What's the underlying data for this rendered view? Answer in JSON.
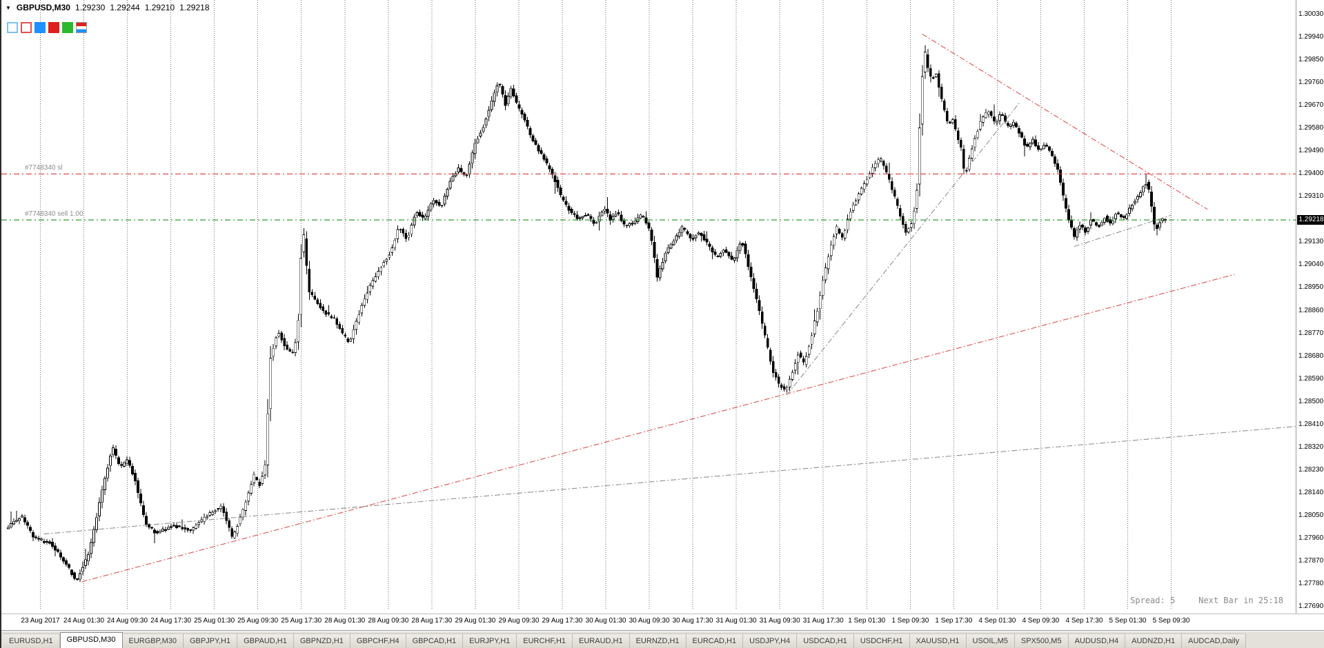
{
  "header": {
    "window_menu_icon": "▼",
    "symbol_title": "GBPUSD,M30",
    "ohlc": {
      "open": "1.29230",
      "high": "1.29244",
      "low": "1.29210",
      "close": "1.29218"
    }
  },
  "palette": {
    "swatches": [
      {
        "name": "outline-blue",
        "type": "outline",
        "color": "#7ec0ea"
      },
      {
        "name": "outline-red",
        "type": "outline",
        "color": "#e05050"
      },
      {
        "name": "solid-blue",
        "type": "solid",
        "color": "#1e90ff"
      },
      {
        "name": "solid-red",
        "type": "solid",
        "color": "#dd2020"
      },
      {
        "name": "solid-green",
        "type": "solid",
        "color": "#2eb82e"
      },
      {
        "name": "striped-flag",
        "type": "stripes",
        "colors": [
          "#dd2020",
          "#ffffff",
          "#1e90ff"
        ]
      }
    ]
  },
  "chart_data": {
    "type": "candlestick",
    "symbol": "GBPUSD",
    "timeframe": "M30",
    "title": "GBPUSD,M30",
    "current_price": "1.29218",
    "candle_count": 420,
    "ylim": [
      1.2769,
      1.3003
    ],
    "price_step": 0.0009,
    "grid": "vertical-dotted",
    "y_ticks": [
      "1.30030",
      "1.29940",
      "1.29850",
      "1.29760",
      "1.29670",
      "1.29580",
      "1.29490",
      "1.29400",
      "1.29310",
      "1.29220",
      "1.29130",
      "1.29040",
      "1.28950",
      "1.28860",
      "1.28770",
      "1.28680",
      "1.28590",
      "1.28500",
      "1.28410",
      "1.28320",
      "1.28230",
      "1.28140",
      "1.28050",
      "1.27960",
      "1.27870",
      "1.27780",
      "1.27690"
    ],
    "x_labels": [
      "23 Aug 2017",
      "24 Aug 01:30",
      "24 Aug 09:30",
      "24 Aug 17:30",
      "25 Aug 01:30",
      "25 Aug 09:30",
      "25 Aug 17:30",
      "28 Aug 01:30",
      "28 Aug 09:30",
      "28 Aug 17:30",
      "29 Aug 01:30",
      "29 Aug 09:30",
      "29 Aug 17:30",
      "30 Aug 01:30",
      "30 Aug 09:30",
      "30 Aug 17:30",
      "31 Aug 01:30",
      "31 Aug 09:30",
      "31 Aug 17:30",
      "1 Sep 01:30",
      "1 Sep 09:30",
      "1 Sep 17:30",
      "4 Sep 01:30",
      "4 Sep 09:30",
      "4 Sep 17:30",
      "5 Sep 01:30",
      "5 Sep 09:30"
    ],
    "levels": [
      {
        "id": "sl",
        "label": "#7748340 sl",
        "price": 1.294,
        "color": "#e03232",
        "style": "dash-dot"
      },
      {
        "id": "sell",
        "label": "#7748340 sell 1.00",
        "price": 1.29218,
        "color": "#179017",
        "style": "dash-dot"
      }
    ],
    "trendlines": [
      {
        "name": "rising-support-red",
        "x1": 0.0635,
        "p1": 1.27788,
        "x2": 1.0599,
        "p2": 1.29003,
        "color": "#e05050"
      },
      {
        "name": "falling-resistance-red",
        "x1": 0.7898,
        "p1": 1.29953,
        "x2": 1.0365,
        "p2": 1.2926,
        "color": "#e05050"
      },
      {
        "name": "long-rising-gray",
        "x1": 0.0307,
        "p1": 1.27977,
        "x2": 1.1146,
        "p2": 1.28403,
        "color": "#8f8f8f"
      },
      {
        "name": "steep-rising-gray",
        "x1": 0.673,
        "p1": 1.28527,
        "x2": 0.8737,
        "p2": 1.2968,
        "color": "#8f8f8f"
      },
      {
        "name": "short-rising-gray",
        "x1": 0.9212,
        "p1": 1.29113,
        "x2": 1.0051,
        "p2": 1.29237,
        "color": "#8f8f8f"
      }
    ],
    "price_path": [
      [
        0.0,
        1.28
      ],
      [
        0.0124,
        1.2805
      ],
      [
        0.0234,
        1.2796
      ],
      [
        0.038,
        1.2794
      ],
      [
        0.0511,
        1.2786
      ],
      [
        0.0599,
        1.2779
      ],
      [
        0.0708,
        1.279
      ],
      [
        0.0832,
        1.2817
      ],
      [
        0.0912,
        1.2832
      ],
      [
        0.0978,
        1.2824
      ],
      [
        0.1036,
        1.2827
      ],
      [
        0.1109,
        1.2819
      ],
      [
        0.1197,
        1.2802
      ],
      [
        0.1292,
        1.2798
      ],
      [
        0.1438,
        1.2801
      ],
      [
        0.1584,
        1.2799
      ],
      [
        0.173,
        1.2805
      ],
      [
        0.1854,
        1.2809
      ],
      [
        0.1949,
        1.2796
      ],
      [
        0.2058,
        1.2809
      ],
      [
        0.2131,
        1.2821
      ],
      [
        0.2182,
        1.2817
      ],
      [
        0.2233,
        1.2825
      ],
      [
        0.2277,
        1.2867
      ],
      [
        0.2343,
        1.2878
      ],
      [
        0.2401,
        1.2872
      ],
      [
        0.2467,
        1.2869
      ],
      [
        0.2511,
        1.2876
      ],
      [
        0.2555,
        1.2921
      ],
      [
        0.2606,
        1.2894
      ],
      [
        0.2679,
        1.2889
      ],
      [
        0.2752,
        1.2885
      ],
      [
        0.2825,
        1.2883
      ],
      [
        0.2898,
        1.2877
      ],
      [
        0.2956,
        1.2873
      ],
      [
        0.3044,
        1.2885
      ],
      [
        0.3131,
        1.2895
      ],
      [
        0.3226,
        1.2903
      ],
      [
        0.3314,
        1.2909
      ],
      [
        0.3387,
        1.2919
      ],
      [
        0.346,
        1.2914
      ],
      [
        0.3533,
        1.2925
      ],
      [
        0.3606,
        1.2922
      ],
      [
        0.3679,
        1.293
      ],
      [
        0.3752,
        1.2927
      ],
      [
        0.3825,
        1.2937
      ],
      [
        0.3898,
        1.2942
      ],
      [
        0.3971,
        1.2939
      ],
      [
        0.4044,
        1.2952
      ],
      [
        0.4117,
        1.2959
      ],
      [
        0.419,
        1.2969
      ],
      [
        0.4248,
        1.2977
      ],
      [
        0.4307,
        1.2967
      ],
      [
        0.4358,
        1.2974
      ],
      [
        0.4409,
        1.2967
      ],
      [
        0.4467,
        1.2962
      ],
      [
        0.4526,
        1.2955
      ],
      [
        0.4584,
        1.295
      ],
      [
        0.465,
        1.2945
      ],
      [
        0.4723,
        1.2939
      ],
      [
        0.4796,
        1.293
      ],
      [
        0.4869,
        1.2925
      ],
      [
        0.4942,
        1.2922
      ],
      [
        0.5015,
        1.2924
      ],
      [
        0.5088,
        1.292
      ],
      [
        0.5161,
        1.2927
      ],
      [
        0.5212,
        1.2922
      ],
      [
        0.527,
        1.2925
      ],
      [
        0.5343,
        1.2919
      ],
      [
        0.5416,
        1.2921
      ],
      [
        0.5489,
        1.2924
      ],
      [
        0.5562,
        1.2917
      ],
      [
        0.562,
        1.2899
      ],
      [
        0.5693,
        1.2909
      ],
      [
        0.5766,
        1.2914
      ],
      [
        0.5839,
        1.2919
      ],
      [
        0.5912,
        1.2914
      ],
      [
        0.5985,
        1.2917
      ],
      [
        0.6058,
        1.2912
      ],
      [
        0.6131,
        1.2907
      ],
      [
        0.6204,
        1.291
      ],
      [
        0.6277,
        1.2905
      ],
      [
        0.635,
        1.2914
      ],
      [
        0.6401,
        1.2905
      ],
      [
        0.646,
        1.2894
      ],
      [
        0.6511,
        1.2884
      ],
      [
        0.6569,
        1.2872
      ],
      [
        0.662,
        1.2862
      ],
      [
        0.6672,
        1.2857
      ],
      [
        0.673,
        1.2854
      ],
      [
        0.6788,
        1.2862
      ],
      [
        0.6839,
        1.2869
      ],
      [
        0.689,
        1.2865
      ],
      [
        0.6949,
        1.2875
      ],
      [
        0.7007,
        1.2887
      ],
      [
        0.7058,
        1.2899
      ],
      [
        0.7109,
        1.2909
      ],
      [
        0.7168,
        1.2919
      ],
      [
        0.7226,
        1.2914
      ],
      [
        0.7277,
        1.2924
      ],
      [
        0.7328,
        1.2929
      ],
      [
        0.7387,
        1.2934
      ],
      [
        0.7445,
        1.2939
      ],
      [
        0.7496,
        1.2944
      ],
      [
        0.7547,
        1.2946
      ],
      [
        0.7606,
        1.294
      ],
      [
        0.7664,
        1.2932
      ],
      [
        0.7715,
        1.2924
      ],
      [
        0.7766,
        1.2917
      ],
      [
        0.7825,
        1.2921
      ],
      [
        0.7861,
        1.2932
      ],
      [
        0.7898,
        1.2969
      ],
      [
        0.7927,
        1.299
      ],
      [
        0.7956,
        1.2982
      ],
      [
        0.7993,
        1.2977
      ],
      [
        0.8029,
        1.298
      ],
      [
        0.8066,
        1.2972
      ],
      [
        0.8102,
        1.2965
      ],
      [
        0.8139,
        1.2959
      ],
      [
        0.8175,
        1.2962
      ],
      [
        0.8212,
        1.2955
      ],
      [
        0.8248,
        1.295
      ],
      [
        0.8277,
        1.2939
      ],
      [
        0.8321,
        1.2947
      ],
      [
        0.8372,
        1.2955
      ],
      [
        0.8423,
        1.2962
      ],
      [
        0.8482,
        1.2965
      ],
      [
        0.854,
        1.296
      ],
      [
        0.8591,
        1.2964
      ],
      [
        0.8642,
        1.2959
      ],
      [
        0.8701,
        1.296
      ],
      [
        0.8759,
        1.2955
      ],
      [
        0.881,
        1.295
      ],
      [
        0.8861,
        1.2954
      ],
      [
        0.892,
        1.2949
      ],
      [
        0.8978,
        1.2952
      ],
      [
        0.9029,
        1.2947
      ],
      [
        0.908,
        1.2942
      ],
      [
        0.9124,
        1.2932
      ],
      [
        0.9175,
        1.2922
      ],
      [
        0.9226,
        1.2915
      ],
      [
        0.927,
        1.292
      ],
      [
        0.9321,
        1.2917
      ],
      [
        0.9372,
        1.2922
      ],
      [
        0.9431,
        1.2919
      ],
      [
        0.9489,
        1.2923
      ],
      [
        0.954,
        1.292
      ],
      [
        0.9591,
        1.2925
      ],
      [
        0.965,
        1.2922
      ],
      [
        0.9708,
        1.2927
      ],
      [
        0.9759,
        1.293
      ],
      [
        0.981,
        1.2934
      ],
      [
        0.9854,
        1.2937
      ],
      [
        0.9883,
        1.293
      ],
      [
        0.9927,
        1.2917
      ],
      [
        0.9971,
        1.29218
      ]
    ],
    "footer": {
      "spread": "Spread: 5",
      "next_bar": "Next Bar in 25:18"
    }
  },
  "tabs": {
    "active": "GBPUSD,M30",
    "items": [
      "EURUSD,H1",
      "GBPUSD,M30",
      "EURGBP,M30",
      "GBPJPY,H1",
      "GBPAUD,H1",
      "GBPNZD,H1",
      "GBPCHF,H4",
      "GBPCAD,H1",
      "EURJPY,H1",
      "EURCHF,H1",
      "EURAUD,H1",
      "EURNZD,H1",
      "EURCAD,H1",
      "USDJPY,H4",
      "USDCAD,H1",
      "USDCHF,H1",
      "XAUUSD,H1",
      "USOIL,M5",
      "SPX500,M5",
      "AUDUSD,H4",
      "AUDNZD,H1",
      "AUDCAD,Daily"
    ]
  }
}
